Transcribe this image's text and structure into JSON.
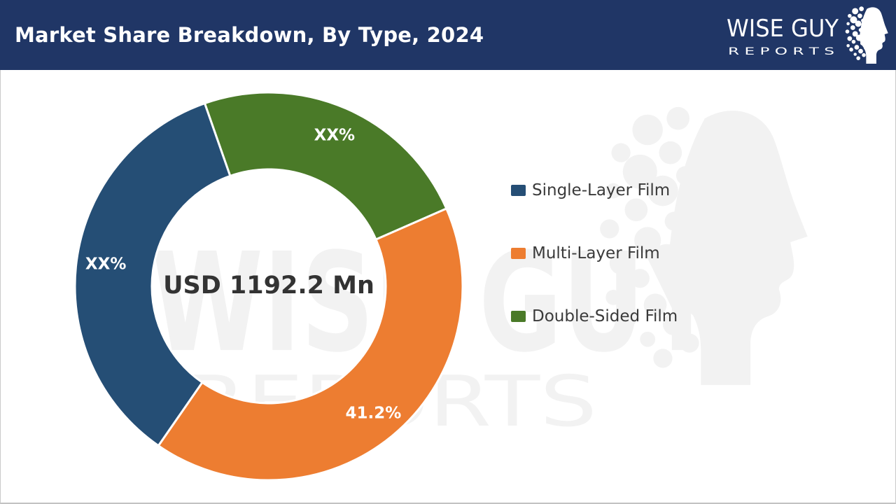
{
  "header": {
    "title": "Market Share Breakdown, By Type, 2024",
    "logo_line1": "WISE GUY",
    "logo_line2": "R E P O R T S"
  },
  "watermark": {
    "line1": "WISE GUY",
    "line2": "REPORTS"
  },
  "chart_data": {
    "type": "pie",
    "subtype": "donut",
    "title": "Market Share Breakdown, By Type, 2024",
    "center_label": "USD 1192.2 Mn",
    "unit": "percent of market share",
    "slices": [
      {
        "label": "Single-Layer Film",
        "value": 35.0,
        "value_display": "XX%",
        "color": "#254E75"
      },
      {
        "label": "Multi-Layer Film",
        "value": 41.2,
        "value_display": "41.2%",
        "color": "#ED7D31"
      },
      {
        "label": "Double-Sided Film",
        "value": 23.8,
        "value_display": "XX%",
        "color": "#4A7A28"
      }
    ],
    "layout": {
      "start_angle_deg": -19.3,
      "draw_order": [
        2,
        1,
        0
      ],
      "direction": "clockwise",
      "legend_position": "right",
      "note_colors": {
        "header_bar": "#203666",
        "center_text": "#333333",
        "legend_text": "#3a3a3a",
        "watermark": "#f2f2f2"
      }
    }
  }
}
